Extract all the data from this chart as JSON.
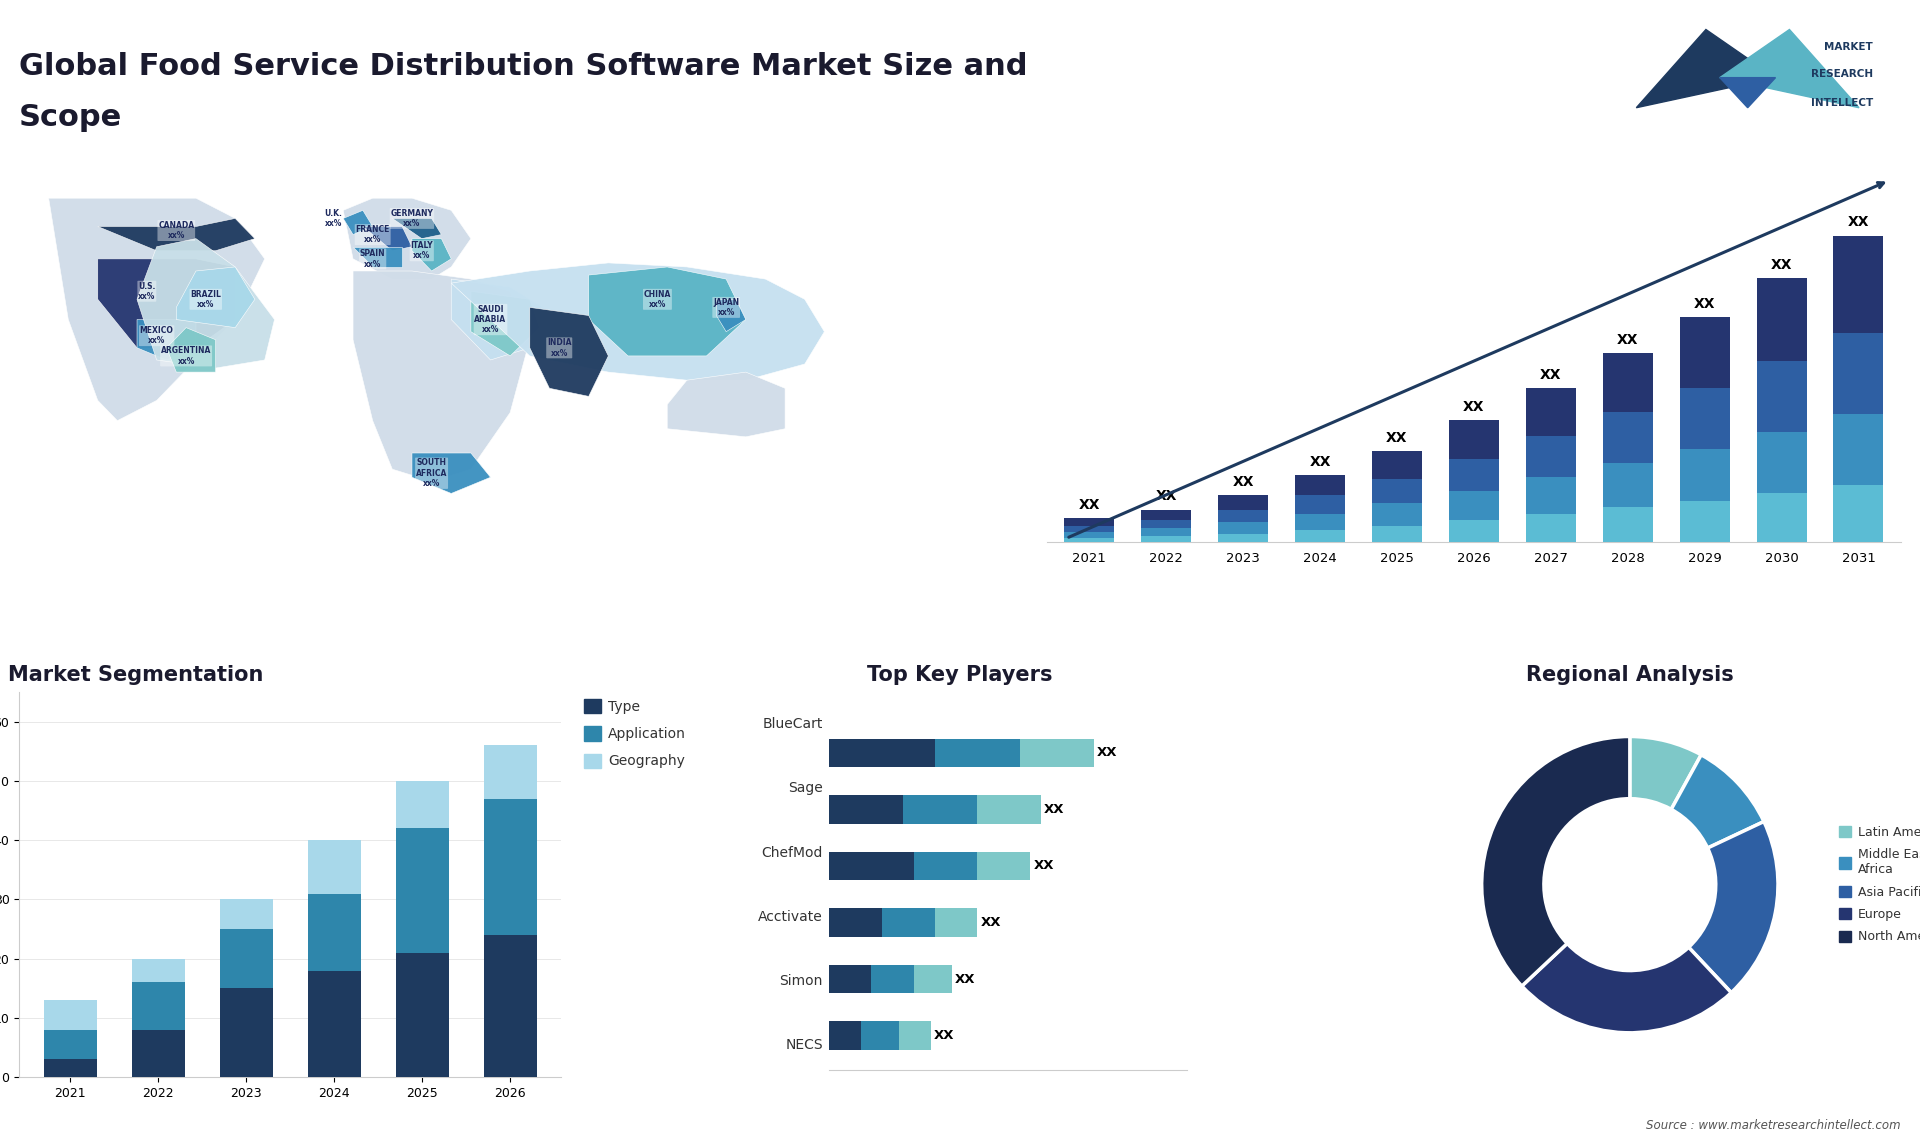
{
  "title_line1": "Global Food Service Distribution Software Market Size and",
  "title_line2": "Scope",
  "background_color": "#ffffff",
  "title_fontsize": 22,
  "title_color": "#1a1a2e",
  "bar_main_years": [
    2021,
    2022,
    2023,
    2024,
    2025,
    2026,
    2027,
    2028,
    2029,
    2030,
    2031
  ],
  "bar_main_seg1": [
    2.0,
    2.5,
    3.5,
    5.0,
    7.0,
    9.5,
    12.0,
    14.5,
    17.5,
    20.5,
    24.0
  ],
  "bar_main_seg2": [
    1.5,
    2.0,
    3.0,
    4.5,
    6.0,
    8.0,
    10.0,
    12.5,
    15.0,
    17.5,
    20.0
  ],
  "bar_main_seg3": [
    1.5,
    2.0,
    3.0,
    4.0,
    5.5,
    7.0,
    9.0,
    11.0,
    13.0,
    15.0,
    17.5
  ],
  "bar_main_seg4": [
    1.0,
    1.5,
    2.0,
    3.0,
    4.0,
    5.5,
    7.0,
    8.5,
    10.0,
    12.0,
    14.0
  ],
  "bar_main_color1": "#253570",
  "bar_main_color2": "#2e5fa3",
  "bar_main_color3": "#3a8fbf",
  "bar_main_color4": "#5bbcd4",
  "arrow_color": "#1e3a5f",
  "seg_years": [
    2021,
    2022,
    2023,
    2024,
    2025,
    2026
  ],
  "seg_type": [
    3,
    8,
    15,
    18,
    21,
    24
  ],
  "seg_app": [
    5,
    8,
    10,
    13,
    21,
    23
  ],
  "seg_geo": [
    5,
    4,
    5,
    9,
    8,
    9
  ],
  "seg_color_type": "#1e3a5f",
  "seg_color_app": "#2e86ab",
  "seg_color_geo": "#a8d8ea",
  "players": [
    "BlueCart",
    "Sage",
    "ChefMod",
    "Acctivate",
    "Simon",
    "NECS"
  ],
  "players_v1": [
    5.0,
    3.5,
    4.0,
    2.5,
    2.0,
    1.5
  ],
  "players_v2": [
    4.0,
    3.5,
    3.0,
    2.5,
    2.0,
    1.8
  ],
  "players_v3": [
    3.5,
    3.0,
    2.5,
    2.0,
    1.8,
    1.5
  ],
  "players_color1": "#1e3a5f",
  "players_color2": "#2e86ab",
  "players_color3": "#7ec8c8",
  "donut_labels": [
    "Latin America",
    "Middle East &\nAfrica",
    "Asia Pacific",
    "Europe",
    "North America"
  ],
  "donut_values": [
    8,
    10,
    20,
    25,
    37
  ],
  "donut_colors": [
    "#7ec8c8",
    "#3a8fbf",
    "#2e5fa3",
    "#253570",
    "#1a2a50"
  ],
  "source_text": "Source : www.marketresearchintellect.com",
  "logo_text": "MARKET\nRESEARCH\nINTELLECT"
}
